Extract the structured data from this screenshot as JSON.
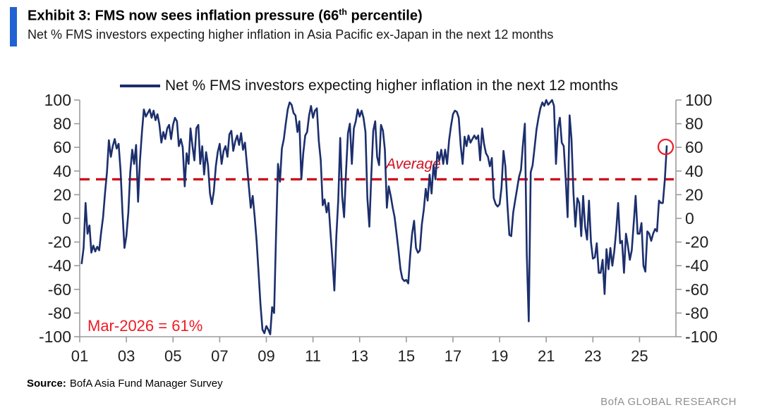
{
  "header": {
    "title_prefix": "Exhibit 3: FMS now sees inflation pressure (66",
    "title_sup": "th",
    "title_suffix": " percentile)",
    "subtitle": "Net % FMS investors expecting higher inflation in Asia Pacific ex-Japan in the next 12 months"
  },
  "legend": {
    "label": "Net % FMS investors expecting higher inflation in the next 12 months"
  },
  "annotations": {
    "average_label": "Average",
    "latest_label": "Mar-2026 = 61%"
  },
  "footer": {
    "source_label": "Source:",
    "source_text": "BofA Asia Fund Manager Survey",
    "brand": "BofA GLOBAL RESEARCH"
  },
  "colors": {
    "line_navy": "#1c2f6d",
    "average_red": "#d0111f",
    "annotation_red": "#ee1c25",
    "axis_gray": "#9b9b9b",
    "tick_label": "#1f1f1f",
    "accent_blue": "#2062d4",
    "brand_gray": "#8f8f8f"
  },
  "chart_data": {
    "type": "line",
    "title": "Net % FMS investors expecting higher inflation in the next 12 months",
    "frequency": "monthly",
    "start_month": "2001-02",
    "end_month": "2026-03",
    "ylim": [
      -100,
      100
    ],
    "y_ticks": [
      100,
      80,
      60,
      40,
      20,
      0,
      -20,
      -40,
      -60,
      -80,
      -100
    ],
    "x_ticks": [
      "01",
      "03",
      "05",
      "07",
      "09",
      "11",
      "13",
      "15",
      "17",
      "19",
      "21",
      "23",
      "25"
    ],
    "average": 33,
    "latest": {
      "label": "Mar-2026",
      "value": 61
    },
    "grid": false,
    "legend_position": "top-center",
    "values": [
      -38,
      -25,
      13,
      -13,
      -6,
      -29,
      -23,
      -28,
      -24,
      -27,
      -12,
      1,
      21,
      39,
      66,
      52,
      61,
      67,
      59,
      63,
      40,
      5,
      -25,
      -15,
      5,
      39,
      58,
      46,
      62,
      14,
      49,
      73,
      92,
      86,
      89,
      92,
      85,
      91,
      83,
      88,
      79,
      64,
      73,
      67,
      76,
      79,
      67,
      79,
      85,
      82,
      61,
      67,
      60,
      27,
      55,
      46,
      76,
      61,
      49,
      76,
      79,
      46,
      61,
      37,
      56,
      45,
      21,
      12,
      23,
      44,
      56,
      63,
      46,
      57,
      61,
      52,
      71,
      74,
      57,
      65,
      70,
      62,
      72,
      58,
      64,
      46,
      27,
      9,
      19,
      1,
      -19,
      -46,
      -73,
      -94,
      -97,
      -91,
      -94,
      -98,
      -75,
      -80,
      -13,
      46,
      31,
      59,
      67,
      80,
      92,
      98,
      96,
      89,
      87,
      73,
      82,
      33,
      55,
      70,
      73,
      87,
      95,
      85,
      91,
      93,
      65,
      49,
      11,
      16,
      5,
      13,
      -12,
      -35,
      -61,
      -15,
      15,
      68,
      19,
      1,
      39,
      72,
      80,
      46,
      76,
      82,
      92,
      86,
      91,
      85,
      73,
      17,
      -7,
      37,
      74,
      82,
      52,
      45,
      79,
      74,
      58,
      9,
      27,
      19,
      9,
      1,
      -13,
      -27,
      -43,
      -51,
      -53,
      -52,
      -55,
      -31,
      -13,
      -2,
      -25,
      -29,
      -27,
      -5,
      7,
      25,
      15,
      37,
      21,
      45,
      33,
      56,
      49,
      58,
      46,
      58,
      46,
      66,
      78,
      88,
      91,
      90,
      85,
      61,
      46,
      69,
      61,
      70,
      64,
      67,
      70,
      67,
      70,
      49,
      76,
      63,
      55,
      52,
      44,
      51,
      17,
      12,
      10,
      12,
      26,
      57,
      44,
      12,
      -14,
      -15,
      5,
      15,
      25,
      35,
      41,
      62,
      80,
      -30,
      -87,
      39,
      45,
      60,
      75,
      85,
      93,
      98,
      95,
      100,
      96,
      98,
      100,
      95,
      46,
      76,
      85,
      64,
      61,
      33,
      1,
      87,
      67,
      21,
      -7,
      17,
      13,
      -15,
      19,
      -7,
      -18,
      15,
      -20,
      -34,
      -33,
      -21,
      -46,
      -46,
      -35,
      -64,
      -26,
      -43,
      -25,
      -40,
      -28,
      -10,
      13,
      -21,
      -19,
      -46,
      -13,
      -23,
      -35,
      -27,
      -4,
      19,
      -13,
      -13,
      -4,
      -40,
      -45,
      -11,
      -13,
      -19,
      -13,
      -9,
      -11,
      15,
      13,
      13,
      33,
      61
    ]
  }
}
